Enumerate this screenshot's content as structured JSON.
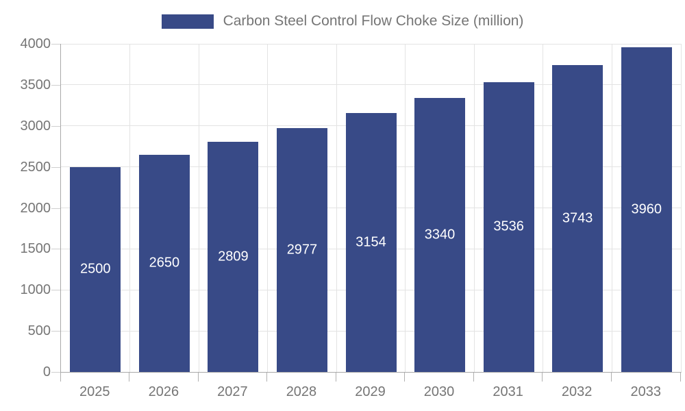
{
  "chart_data": {
    "type": "bar",
    "title": "Carbon Steel Control Flow Choke Size (million)",
    "categories": [
      "2025",
      "2026",
      "2027",
      "2028",
      "2029",
      "2030",
      "2031",
      "2032",
      "2033"
    ],
    "series": [
      {
        "name": "Carbon Steel Control Flow Choke Size (million)",
        "values": [
          2500,
          2650,
          2809,
          2977,
          3154,
          3340,
          3536,
          3743,
          3960
        ]
      }
    ],
    "xlabel": "",
    "ylabel": "",
    "ylim": [
      0,
      4000
    ],
    "yticks": [
      0,
      500,
      1000,
      1500,
      2000,
      2500,
      3000,
      3500,
      4000
    ],
    "grid": "horizontal-and-vertical",
    "legend_position": "top-center",
    "value_labels_position": "inside-center",
    "colors": {
      "bar": "#384a87",
      "bar_label": "#ffffff",
      "grid": "#e3e3e3",
      "axis_line": "#a8a8a8",
      "tick_label": "#757575",
      "legend_text": "#757575",
      "background": "#ffffff"
    }
  }
}
